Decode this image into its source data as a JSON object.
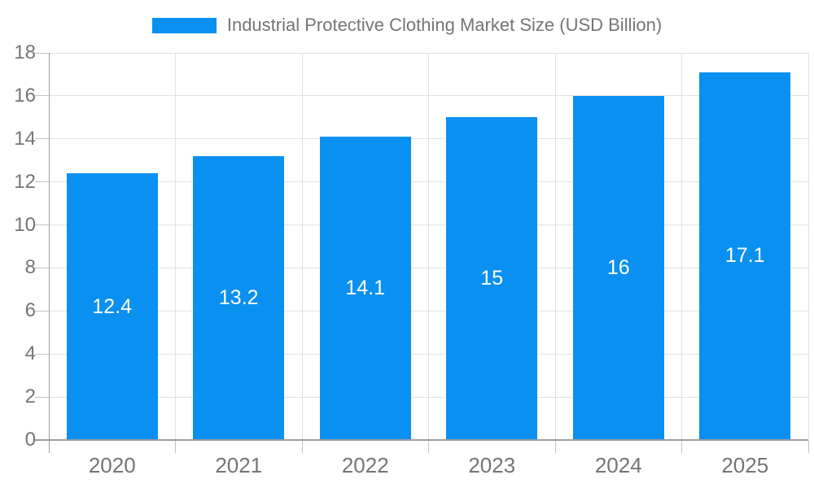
{
  "chart_data": {
    "type": "bar",
    "title": "Industrial Protective Clothing Market Size (USD Billion)",
    "legend_position": "top",
    "categories": [
      "2020",
      "2021",
      "2022",
      "2023",
      "2024",
      "2025"
    ],
    "values": [
      12.4,
      13.2,
      14.1,
      15,
      16,
      17.1
    ],
    "value_labels": [
      "12.4",
      "13.2",
      "14.1",
      "15",
      "16",
      "17.1"
    ],
    "yticks": [
      0,
      2,
      4,
      6,
      8,
      10,
      12,
      14,
      16,
      18
    ],
    "ylim": [
      0,
      18
    ],
    "ytick_step": 2,
    "xlabel": "",
    "ylabel": "",
    "grid": true,
    "colors": {
      "bar": "#0A90F1",
      "grid": "#e2e2e2",
      "axis": "#9e9e9e",
      "tick": "#c2c2c2",
      "label": "#757575",
      "value_label": "#ffffff",
      "background": "#ffffff"
    }
  }
}
